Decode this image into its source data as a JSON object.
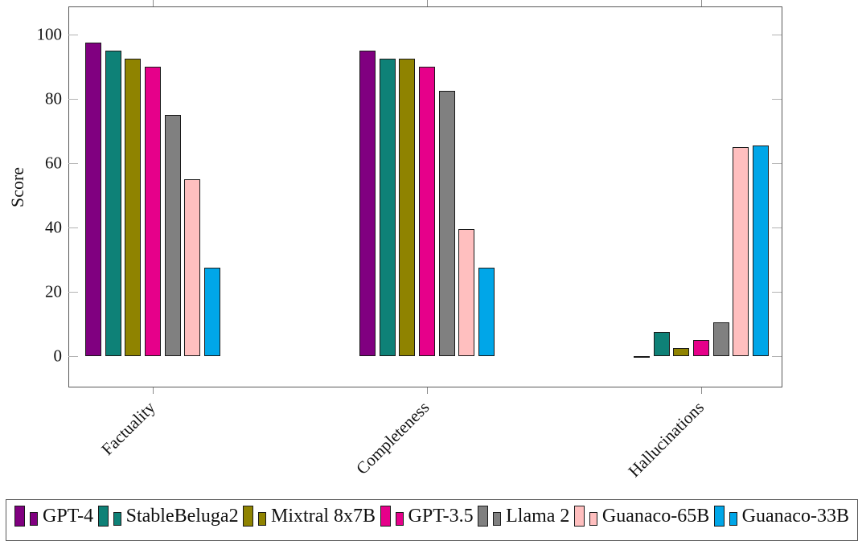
{
  "chart_data": {
    "type": "bar",
    "title": "",
    "xlabel": "",
    "ylabel": "Score",
    "categories": [
      "Factuality",
      "Completeness",
      "Hallucinations"
    ],
    "series": [
      {
        "name": "GPT-4",
        "color": "#800080",
        "values": [
          97.5,
          95,
          0
        ]
      },
      {
        "name": "StableBeluga2",
        "color": "#0E8177",
        "values": [
          95,
          92.5,
          7.5
        ]
      },
      {
        "name": "Mixtral 8x7B",
        "color": "#8F8300",
        "values": [
          92.5,
          92.5,
          2.5
        ]
      },
      {
        "name": "GPT-3.5",
        "color": "#E6008A",
        "values": [
          90,
          90,
          5
        ]
      },
      {
        "name": "Llama 2",
        "color": "#808080",
        "values": [
          75,
          82.5,
          10.5
        ]
      },
      {
        "name": "Guanaco-65B",
        "color": "#FFBFBF",
        "values": [
          55,
          39.5,
          65
        ]
      },
      {
        "name": "Guanaco-33B",
        "color": "#00A6E8",
        "values": [
          27.5,
          27.5,
          65.5
        ]
      }
    ],
    "yticks": [
      0,
      20,
      40,
      60,
      80,
      100
    ],
    "ylim": [
      -9.75,
      108.75
    ],
    "grid": false,
    "legend_position": "bottom",
    "frame_color": "#595959",
    "bar_outline_color": "#1a1a1a"
  }
}
